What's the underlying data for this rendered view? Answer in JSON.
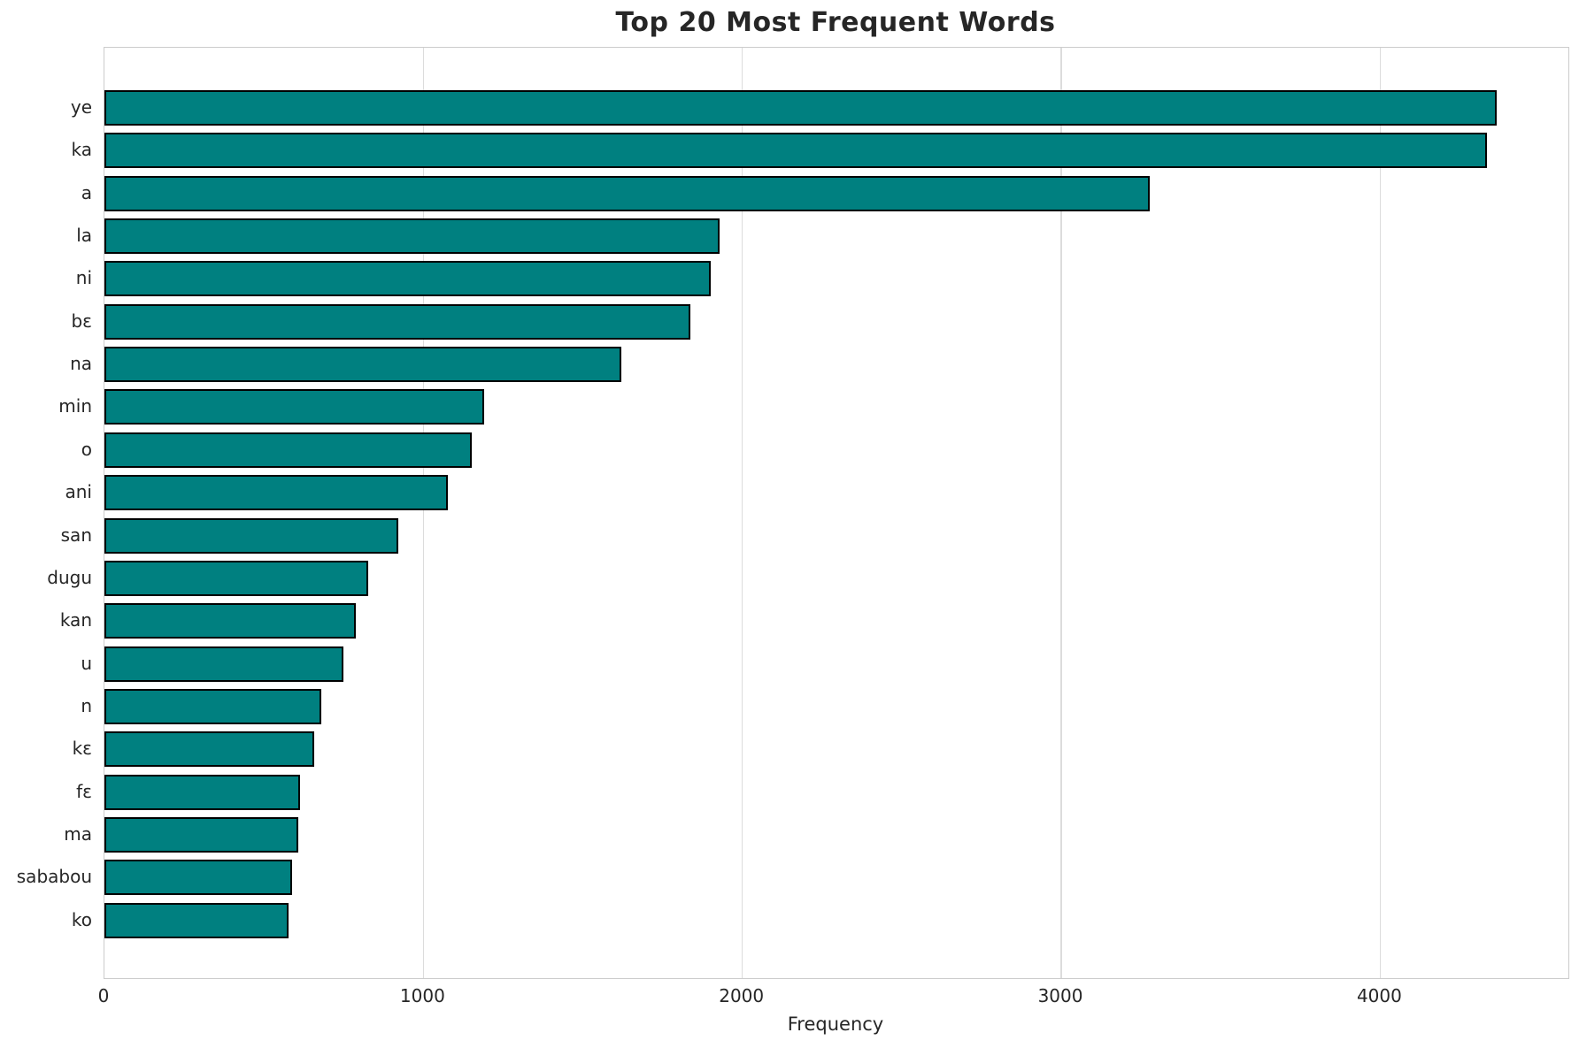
{
  "title": "Top 20 Most Frequent Words",
  "chart_data": {
    "type": "bar",
    "orientation": "horizontal",
    "title": "Top 20 Most Frequent Words",
    "xlabel": "Frequency",
    "ylabel": "",
    "categories": [
      "ye",
      "ka",
      "a",
      "la",
      "ni",
      "bɛ",
      "na",
      "min",
      "o",
      "ani",
      "san",
      "dugu",
      "kan",
      "u",
      "n",
      "kɛ",
      "fɛ",
      "ma",
      "sababou",
      "ko"
    ],
    "values": [
      4365,
      4335,
      3277,
      1928,
      1900,
      1836,
      1622,
      1190,
      1152,
      1077,
      921,
      827,
      788,
      749,
      681,
      657,
      613,
      608,
      587,
      577
    ],
    "xlim": [
      0,
      4590
    ],
    "xticks": [
      0,
      1000,
      2000,
      3000,
      4000
    ],
    "grid": "vertical",
    "grid_color": "#dcdcdc",
    "bar_color": "#008080",
    "bar_edge_color": "#000000"
  }
}
